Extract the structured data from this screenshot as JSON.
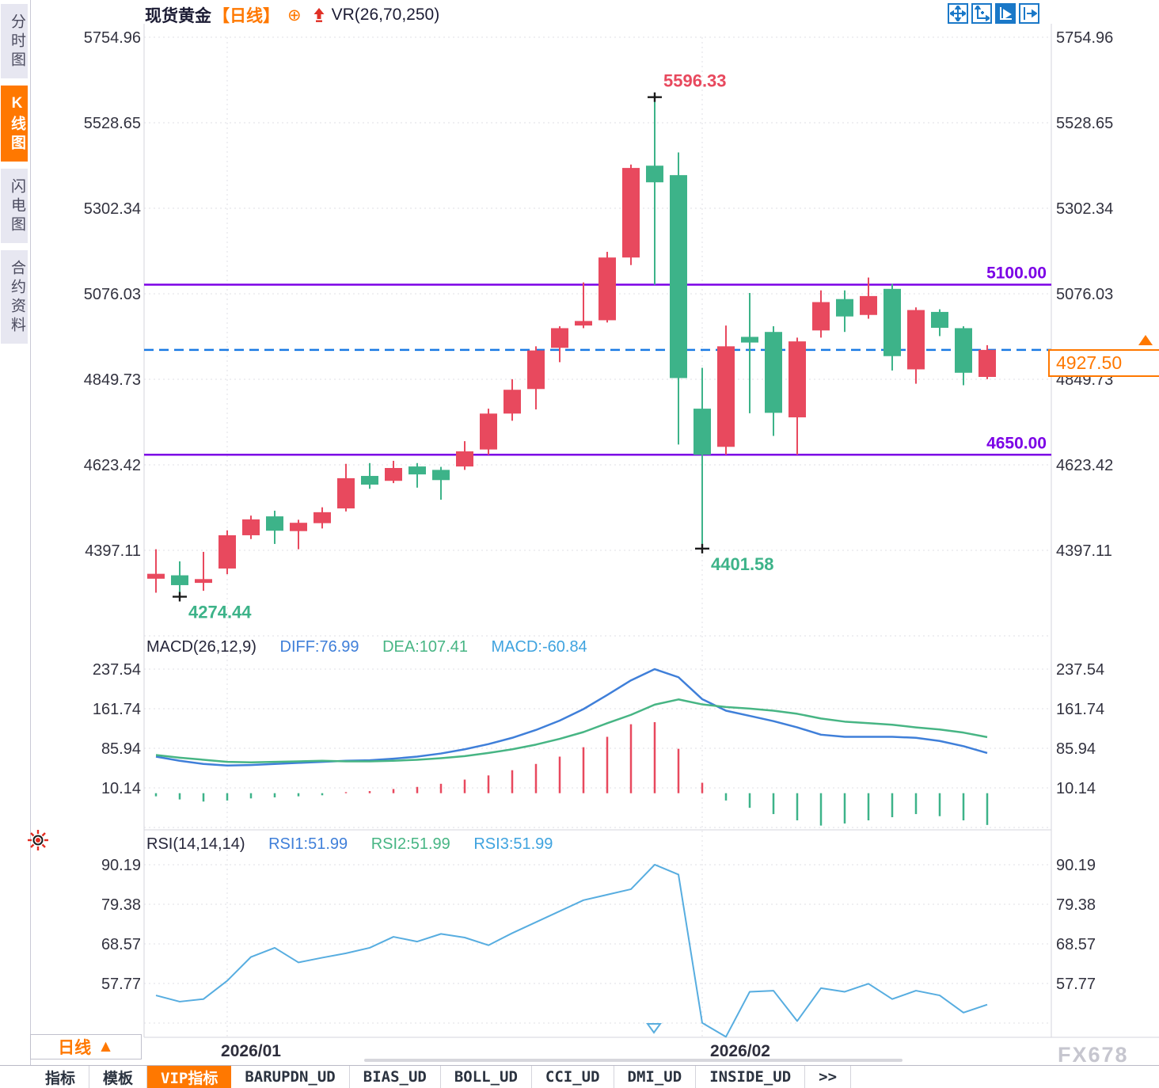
{
  "colors": {
    "accent_orange": "#ff7800",
    "up_red": "#e8495e",
    "down_green": "#3db389",
    "level_purple": "#7b00e6",
    "last_price_blue": "#1a7ae4",
    "diff_blue": "#3f7fd9",
    "dea_green": "#47b584",
    "macd_cyan": "#3fa3df",
    "rsi_blue": "#57ade0",
    "axis_text": "#32323f",
    "grid": "#dfdfe6",
    "toolbar_blue": "#1a78c8"
  },
  "sidebar": {
    "tabs": [
      {
        "label": "分时图",
        "active": false
      },
      {
        "label": "K线图",
        "active": true
      },
      {
        "label": "闪电图",
        "active": false
      },
      {
        "label": "合约资料",
        "active": false
      }
    ]
  },
  "header": {
    "symbol": "现货黄金",
    "period_tag": "【日线】",
    "add_icon": "⊕",
    "indicator_label": "VR(26,70,250)"
  },
  "toolbar": {
    "icons": [
      {
        "name": "crosshair-move",
        "active": false
      },
      {
        "name": "axis-zoom",
        "active": false
      },
      {
        "name": "auto-scale",
        "active": true
      },
      {
        "name": "pan-shift",
        "active": false
      }
    ]
  },
  "chart_data": {
    "type": "candlestick",
    "title": "现货黄金 日线",
    "panels": {
      "price": {
        "y_ticks": [
          5754.96,
          5528.65,
          5302.34,
          5076.03,
          4849.73,
          4623.42,
          4397.11
        ],
        "candles": [
          [
            4322,
            4400,
            4285,
            4335
          ],
          [
            4331,
            4368,
            4274.44,
            4305
          ],
          [
            4311,
            4393,
            4290,
            4321
          ],
          [
            4349,
            4450,
            4334,
            4437
          ],
          [
            4437,
            4489,
            4427,
            4479
          ],
          [
            4487,
            4502,
            4414,
            4449
          ],
          [
            4448,
            4478,
            4400,
            4470
          ],
          [
            4469,
            4511,
            4455,
            4498
          ],
          [
            4508,
            4626,
            4500,
            4588
          ],
          [
            4594,
            4628,
            4560,
            4571
          ],
          [
            4581,
            4634,
            4575,
            4615
          ],
          [
            4619,
            4628,
            4563,
            4598
          ],
          [
            4610,
            4618,
            4531,
            4583
          ],
          [
            4619,
            4686,
            4610,
            4659
          ],
          [
            4664,
            4772,
            4650,
            4759
          ],
          [
            4759,
            4850,
            4740,
            4822
          ],
          [
            4824,
            4937,
            4770,
            4926
          ],
          [
            4933,
            4990,
            4895,
            4985
          ],
          [
            4992,
            5106,
            4985,
            5004
          ],
          [
            5006,
            5187,
            5000,
            5172
          ],
          [
            5172,
            5418,
            5152,
            5409
          ],
          [
            5415,
            5596.33,
            5100,
            5371
          ],
          [
            5390,
            5450,
            4677,
            4853
          ],
          [
            4772,
            4880,
            4401.58,
            4650
          ],
          [
            4671,
            4992,
            4650,
            4937
          ],
          [
            4962,
            5078,
            4760,
            4947
          ],
          [
            4975,
            4990,
            4700,
            4761
          ],
          [
            4749,
            4960,
            4650,
            4950
          ],
          [
            4979,
            5085,
            4960,
            5054
          ],
          [
            5062,
            5085,
            4975,
            5016
          ],
          [
            5020,
            5119,
            5010,
            5070
          ],
          [
            5089,
            5102,
            4873,
            4911
          ],
          [
            4876,
            5040,
            4838,
            5033
          ],
          [
            5028,
            5035,
            4964,
            4986
          ],
          [
            4985,
            4990,
            4834,
            4867
          ],
          [
            4856,
            4940,
            4850,
            4927.5
          ]
        ],
        "levels": [
          {
            "value": 5100,
            "label": "5100.00"
          },
          {
            "value": 4650,
            "label": "4650.00"
          }
        ],
        "last_price": {
          "value": 4927.5,
          "label": "4927.50"
        },
        "annotations": [
          {
            "label": "5596.33",
            "value": 5596.33,
            "index": 21,
            "place": "above",
            "role": "up"
          },
          {
            "label": "4274.44",
            "value": 4274.44,
            "index": 1,
            "place": "below",
            "role": "down"
          },
          {
            "label": "4401.58",
            "value": 4401.58,
            "index": 23,
            "place": "below",
            "role": "down"
          }
        ]
      },
      "macd": {
        "title": "MACD(26,12,9)",
        "diff_label": "DIFF:76.99",
        "dea_label": "DEA:107.41",
        "macd_label": "MACD:-60.84",
        "y_ticks": [
          237.54,
          161.74,
          85.94,
          10.14
        ],
        "diff": [
          70,
          62,
          56,
          53,
          54,
          56,
          58,
          60,
          62,
          63,
          66,
          70,
          76,
          84,
          94,
          106,
          121,
          139,
          161,
          188,
          216,
          237.5,
          222,
          180,
          158,
          148,
          138,
          126,
          112,
          108,
          108,
          108,
          106,
          100,
          90,
          76.99
        ],
        "dea": [
          73,
          68,
          64,
          60,
          59,
          60,
          61,
          62,
          61,
          61,
          62,
          64,
          67,
          71,
          77,
          84,
          93,
          104,
          117,
          134,
          150,
          169.5,
          179.5,
          170,
          165,
          162,
          158,
          152,
          143,
          137,
          134,
          131,
          126,
          122,
          116,
          107.41
        ],
        "hist": [
          -6,
          -12,
          -16,
          -14,
          -10,
          -8,
          -6,
          -4,
          2,
          4,
          8,
          12,
          18,
          26,
          34,
          44,
          56,
          70,
          88,
          108,
          132,
          136,
          85,
          20,
          -14,
          -28,
          -40,
          -52,
          -62,
          -58,
          -52,
          -46,
          -40,
          -44,
          -52,
          -60.84
        ]
      },
      "rsi": {
        "title": "RSI(14,14,14)",
        "rsi1_label": "RSI1:51.99",
        "rsi2_label": "RSI2:51.99",
        "rsi3_label": "RSI3:51.99",
        "y_ticks": [
          90.19,
          79.38,
          68.57,
          57.77
        ],
        "values": [
          54.5,
          52.8,
          53.5,
          58.5,
          65,
          67.5,
          63.5,
          64.8,
          66,
          67.5,
          70.5,
          69.2,
          71.3,
          70.3,
          68.2,
          71.5,
          74.5,
          77.5,
          80.5,
          82,
          83.5,
          90.2,
          87.5,
          47,
          43.2,
          55.5,
          55.8,
          47.5,
          56.5,
          55.5,
          57.7,
          53.5,
          55.8,
          54.5,
          49.8,
          51.99
        ]
      }
    },
    "x_axis": {
      "labels": [
        {
          "text": "2026/01",
          "center_index": 4
        },
        {
          "text": "2026/02",
          "center_index": 24.6
        }
      ],
      "gridline_indices": [
        3,
        23
      ]
    },
    "legend_position": "top-left",
    "grid": true
  },
  "bottom_bar": {
    "timeframe": {
      "label": "日线",
      "arrow": "▲"
    },
    "tabs": [
      {
        "label": "指标",
        "active": false
      },
      {
        "label": "模板",
        "active": false
      },
      {
        "label": "VIP指标",
        "active": true
      },
      {
        "label": "BARUPDN_UD",
        "active": false
      },
      {
        "label": "BIAS_UD",
        "active": false
      },
      {
        "label": "BOLL_UD",
        "active": false
      },
      {
        "label": "CCI_UD",
        "active": false
      },
      {
        "label": "DMI_UD",
        "active": false
      },
      {
        "label": "INSIDE_UD",
        "active": false
      },
      {
        "label": ">>",
        "active": false
      }
    ]
  },
  "watermark": "FX678"
}
